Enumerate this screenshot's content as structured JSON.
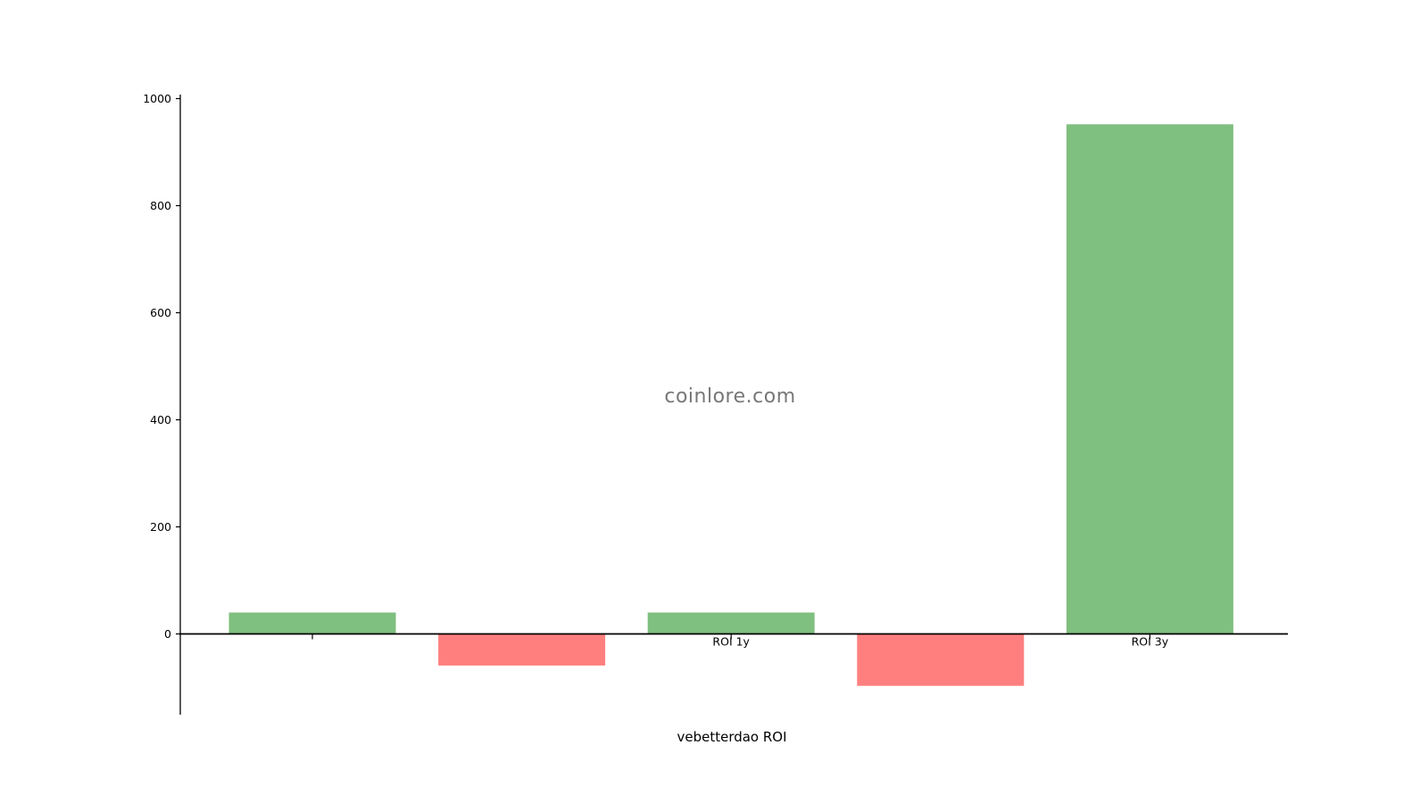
{
  "chart_data": {
    "type": "bar",
    "categories": [
      "",
      "",
      "ROI 1y",
      "",
      "ROI 3y"
    ],
    "values": [
      40,
      -59,
      40,
      -97,
      952
    ],
    "series": [
      {
        "name": "vebetterdao ROI",
        "values": [
          40,
          -59,
          40,
          -97,
          952
        ]
      }
    ],
    "bar_colors": [
      "#7fbf7f",
      "#ff7f7f",
      "#7fbf7f",
      "#ff7f7f",
      "#7fbf7f"
    ],
    "title": "vebetterdao ROI",
    "xlabel": "",
    "ylabel": "",
    "yticks": [
      0,
      200,
      400,
      600,
      800,
      1000
    ],
    "ylim": [
      -151,
      1007
    ],
    "grid": false,
    "legend_position": "none",
    "watermark": "coinlore.com",
    "positive_color": "#7fbf7f",
    "negative_color": "#ff7f7f",
    "axis_color": "#000000",
    "watermark_color": "#777777"
  }
}
